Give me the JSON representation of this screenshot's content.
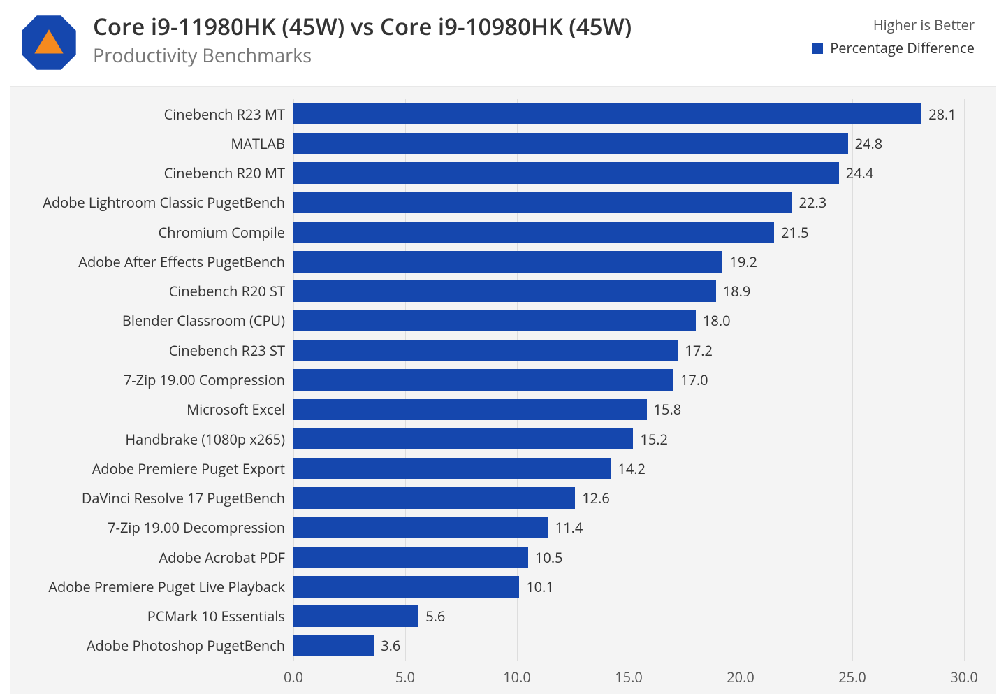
{
  "header": {
    "title": "Core i9-11980HK (45W) vs Core i9-10980HK (45W)",
    "subtitle": "Productivity Benchmarks",
    "higher_better": "Higher is Better",
    "legend_label": "Percentage Difference"
  },
  "chart": {
    "type": "bar",
    "orientation": "horizontal",
    "bar_color": "#1547ae",
    "background_color": "#f4f4f4",
    "grid_color": "#dddddd",
    "label_color": "#333333",
    "value_color": "#333333",
    "label_fontsize": 20,
    "value_fontsize": 20,
    "title_fontsize": 33,
    "subtitle_fontsize": 27,
    "xlim": [
      0,
      30
    ],
    "xtick_step": 5,
    "xticks": [
      "0.0",
      "5.0",
      "10.0",
      "15.0",
      "20.0",
      "25.0",
      "30.0"
    ],
    "bar_height_ratio": 0.72,
    "logo_colors": {
      "octagon": "#1547ae",
      "triangle": "#f58a1f"
    },
    "data": [
      {
        "label": "Cinebench R23 MT",
        "value": 28.1
      },
      {
        "label": "MATLAB",
        "value": 24.8
      },
      {
        "label": "Cinebench R20 MT",
        "value": 24.4
      },
      {
        "label": "Adobe Lightroom Classic PugetBench",
        "value": 22.3
      },
      {
        "label": "Chromium Compile",
        "value": 21.5
      },
      {
        "label": "Adobe After Effects PugetBench",
        "value": 19.2
      },
      {
        "label": "Cinebench R20 ST",
        "value": 18.9
      },
      {
        "label": "Blender Classroom (CPU)",
        "value": 18.0
      },
      {
        "label": "Cinebench R23 ST",
        "value": 17.2
      },
      {
        "label": "7-Zip 19.00 Compression",
        "value": 17.0
      },
      {
        "label": "Microsoft Excel",
        "value": 15.8
      },
      {
        "label": "Handbrake (1080p x265)",
        "value": 15.2
      },
      {
        "label": "Adobe Premiere Puget Export",
        "value": 14.2
      },
      {
        "label": "DaVinci Resolve 17 PugetBench",
        "value": 12.6
      },
      {
        "label": "7-Zip 19.00 Decompression",
        "value": 11.4
      },
      {
        "label": "Adobe Acrobat PDF",
        "value": 10.5
      },
      {
        "label": "Adobe Premiere Puget Live Playback",
        "value": 10.1
      },
      {
        "label": "PCMark 10 Essentials",
        "value": 5.6
      },
      {
        "label": "Adobe Photoshop PugetBench",
        "value": 3.6
      }
    ]
  }
}
